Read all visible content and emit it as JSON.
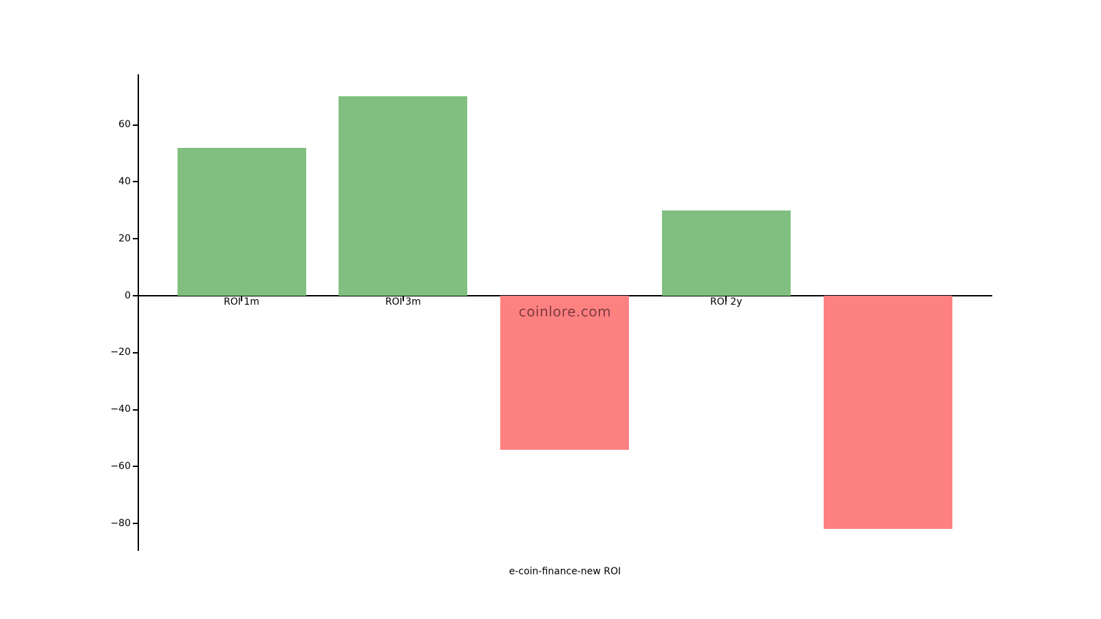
{
  "chart_data": {
    "type": "bar",
    "title": "e-coin-finance-new ROI",
    "categories": [
      "ROI 1m",
      "ROI 3m",
      "",
      "ROI 2y",
      ""
    ],
    "values": [
      52,
      70,
      -54,
      30,
      -82
    ],
    "xlabel": "e-coin-finance-new ROI",
    "ylabel": "",
    "ylim": [
      -90,
      78
    ],
    "yticks": [
      60,
      40,
      20,
      0,
      -20,
      -40,
      -60,
      -80
    ],
    "ytick_labels": [
      "60",
      "40",
      "20",
      "0",
      "−20",
      "−40",
      "−60",
      "−80"
    ],
    "grid": false,
    "legend": false,
    "positive_color": "#80bf80",
    "negative_color": "#fd8181",
    "axis_color": "#000000"
  },
  "watermark": {
    "text": "coinlore.com",
    "color": "#7f3c42"
  }
}
